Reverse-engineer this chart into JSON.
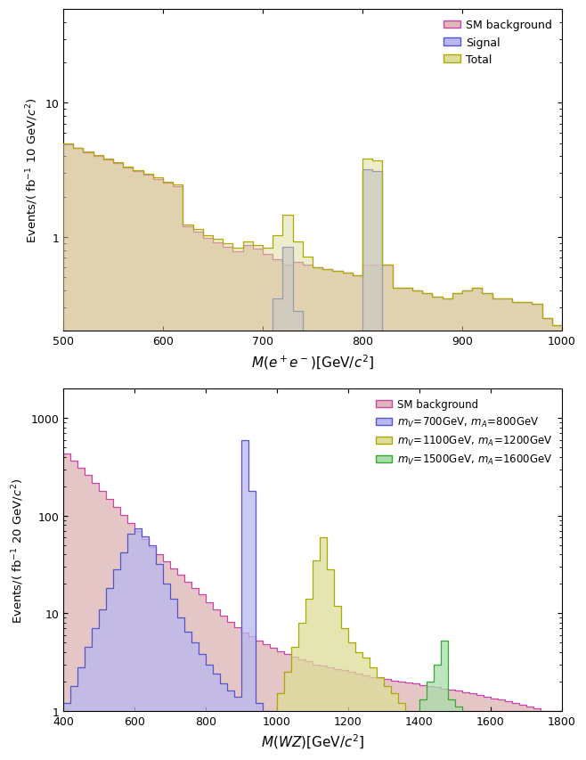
{
  "plot1": {
    "xmin": 500,
    "xmax": 1000,
    "ymin": 0.2,
    "ymax": 50.0,
    "bin_width": 10,
    "sm_bg_color": "#deb8b8",
    "sm_bg_edge": "#cc44aa",
    "signal_color": "#b8b8ee",
    "signal_edge": "#5555cc",
    "total_color": "#dddd99",
    "total_edge": "#aaaa00",
    "sm_bg_bins": [
      4.9,
      4.6,
      4.3,
      4.05,
      3.8,
      3.55,
      3.3,
      3.1,
      2.9,
      2.72,
      2.55,
      2.4,
      1.2,
      1.1,
      0.98,
      0.92,
      0.85,
      0.78,
      0.88,
      0.82,
      0.75,
      0.68,
      0.62,
      0.65,
      0.62,
      0.6,
      0.58,
      0.56,
      0.54,
      0.52,
      0.62,
      0.62,
      0.62,
      0.42,
      0.42,
      0.4,
      0.38,
      0.36,
      0.35,
      0.38,
      0.4,
      0.42,
      0.38,
      0.35,
      0.35,
      0.33,
      0.33,
      0.32,
      0.25,
      0.22
    ],
    "signal1_bins": [
      0,
      0,
      0,
      0,
      0,
      0,
      0,
      0,
      0,
      0,
      0,
      0,
      0,
      0,
      0,
      0,
      0,
      0,
      0,
      0,
      0.08,
      0.35,
      0.85,
      0.28,
      0.1,
      0,
      0,
      0,
      0,
      0,
      3.2,
      3.1,
      0.0,
      0,
      0,
      0,
      0,
      0,
      0,
      0,
      0,
      0,
      0,
      0,
      0,
      0,
      0,
      0,
      0,
      0
    ],
    "total_bins": [
      4.95,
      4.65,
      4.35,
      4.1,
      3.85,
      3.6,
      3.35,
      3.15,
      2.95,
      2.77,
      2.6,
      2.45,
      1.25,
      1.15,
      1.03,
      0.97,
      0.9,
      0.83,
      0.93,
      0.87,
      0.83,
      1.03,
      1.47,
      0.93,
      0.72,
      0.6,
      0.58,
      0.56,
      0.54,
      0.52,
      3.82,
      3.72,
      0.62,
      0.42,
      0.42,
      0.4,
      0.38,
      0.36,
      0.35,
      0.38,
      0.4,
      0.42,
      0.38,
      0.35,
      0.35,
      0.33,
      0.33,
      0.32,
      0.25,
      0.22
    ]
  },
  "plot2": {
    "xmin": 400,
    "xmax": 1800,
    "ymin": 1.0,
    "ymax": 2000.0,
    "bin_width": 20,
    "sm_bg_color": "#deb8b8",
    "sm_bg_edge": "#cc44aa",
    "sig1_color": "#b8b8ee",
    "sig1_edge": "#5555cc",
    "sig2_color": "#dddd99",
    "sig2_edge": "#aaaa00",
    "sig3_color": "#aaddaa",
    "sig3_edge": "#33aa33",
    "sm_bg_bins": [
      430,
      370,
      310,
      260,
      215,
      178,
      148,
      122,
      101,
      84,
      70,
      58,
      48,
      40,
      34,
      29,
      25,
      21,
      18,
      15.5,
      13,
      11,
      9.5,
      8.2,
      7.2,
      6.4,
      5.8,
      5.2,
      4.8,
      4.4,
      4.1,
      3.8,
      3.6,
      3.4,
      3.2,
      3.0,
      2.9,
      2.8,
      2.7,
      2.6,
      2.5,
      2.4,
      2.3,
      2.2,
      2.15,
      2.1,
      2.05,
      2.0,
      1.95,
      1.9,
      1.85,
      1.8,
      1.75,
      1.7,
      1.65,
      1.6,
      1.55,
      1.5,
      1.45,
      1.4,
      1.35,
      1.3,
      1.25,
      1.2,
      1.15,
      1.1,
      1.05,
      1.0,
      1.0,
      1.0
    ],
    "sig1_bins": [
      1.2,
      1.8,
      2.8,
      4.5,
      7,
      11,
      18,
      28,
      42,
      65,
      75,
      62,
      50,
      32,
      20,
      14,
      9,
      6.5,
      5,
      3.8,
      3,
      2.4,
      1.9,
      1.6,
      1.4,
      600,
      180,
      1.2,
      1.0,
      0.8,
      0,
      0,
      0,
      0,
      0,
      0,
      0,
      0,
      0,
      0,
      0,
      0,
      0,
      0,
      0,
      0,
      0,
      0,
      0,
      0,
      0,
      0,
      0,
      0,
      0,
      0,
      0,
      0,
      0,
      0,
      0,
      0,
      0,
      0,
      0,
      0,
      0,
      0,
      0,
      0
    ],
    "sig2_bins": [
      0,
      0,
      0,
      0,
      0,
      0,
      0,
      0,
      0,
      0,
      0,
      0,
      0,
      0,
      0,
      0,
      0,
      0,
      0,
      0,
      0,
      0,
      0,
      0,
      0,
      0,
      0,
      0,
      0,
      0,
      1.5,
      2.5,
      4.5,
      8,
      14,
      35,
      60,
      28,
      12,
      7,
      5,
      4,
      3.5,
      2.8,
      2.2,
      1.8,
      1.5,
      1.2,
      0,
      0,
      0,
      0,
      0,
      0,
      0,
      0,
      0,
      0,
      0,
      0,
      0,
      0,
      0,
      0,
      0,
      0,
      0,
      0,
      0,
      0
    ],
    "sig3_bins": [
      0,
      0,
      0,
      0,
      0,
      0,
      0,
      0,
      0,
      0,
      0,
      0,
      0,
      0,
      0,
      0,
      0,
      0,
      0,
      0,
      0,
      0,
      0,
      0,
      0,
      0,
      0,
      0,
      0,
      0,
      0,
      0,
      0,
      0,
      0,
      0,
      0,
      0,
      0,
      0,
      0,
      0,
      0,
      0,
      0,
      0,
      0,
      0,
      0,
      0,
      1.3,
      2.0,
      3.0,
      5.2,
      1.3,
      1.1,
      0.9,
      0,
      0,
      0,
      0,
      0,
      0,
      0,
      0,
      0,
      0,
      0,
      0,
      0
    ]
  }
}
